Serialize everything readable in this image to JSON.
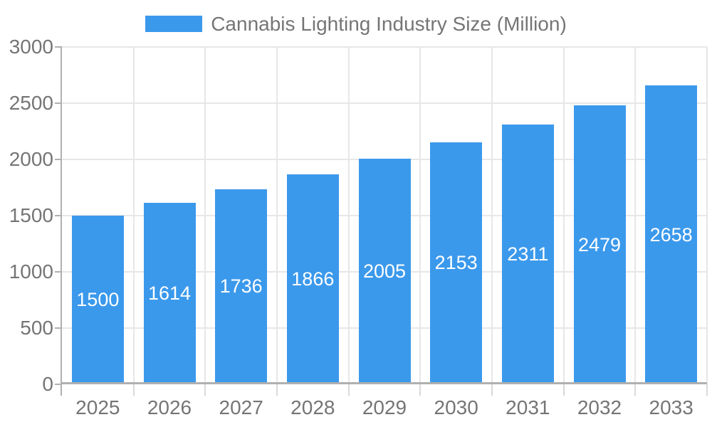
{
  "chart_data": {
    "type": "bar",
    "title": "Cannabis Lighting Industry Size (Million)",
    "categories": [
      "2025",
      "2026",
      "2027",
      "2028",
      "2029",
      "2030",
      "2031",
      "2032",
      "2033"
    ],
    "series": [
      {
        "name": "Cannabis Lighting Industry Size (Million)",
        "values": [
          1500,
          1614,
          1736,
          1866,
          2005,
          2153,
          2311,
          2479,
          2658
        ]
      }
    ],
    "xlabel": "",
    "ylabel": "",
    "ylim": [
      0,
      3000
    ],
    "yticks": [
      0,
      500,
      1000,
      1500,
      2000,
      2500,
      3000
    ],
    "grid": true,
    "legend_position": "top-center",
    "value_label_position": "inside-center",
    "colors": {
      "bar": "#3B99EC",
      "grid": "#E7E7E7",
      "axis": "#B0B0B0",
      "tick": "#D9D9D9",
      "text": "#757575",
      "value_label": "#FFFFFF",
      "background": "#FFFFFF"
    }
  }
}
